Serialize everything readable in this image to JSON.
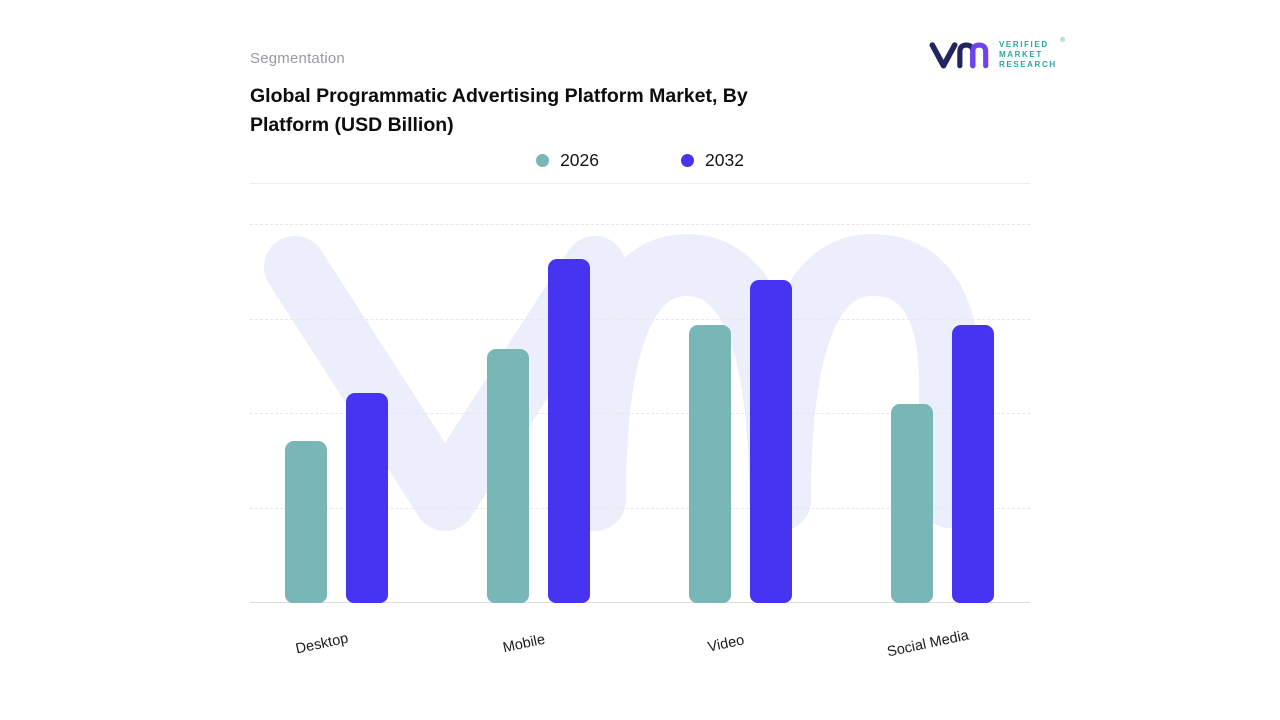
{
  "header": {
    "eyebrow": "Segmentation",
    "title_line1": "Global Programmatic Advertising Platform Market, By",
    "title_line2": "Platform (USD Billion)"
  },
  "logo": {
    "line1": "VERIFIED",
    "line2": "MARKET",
    "line3": "RESEARCH",
    "registered": "®",
    "text_color": "#2aa69f",
    "mark_navy": "#23265e",
    "mark_purple": "#6f42f0"
  },
  "legend": [
    {
      "label": "2026",
      "color": "#78b7b6"
    },
    {
      "label": "2032",
      "color": "#4634f0"
    }
  ],
  "chart_data": {
    "type": "bar",
    "title": "Global Programmatic Advertising Platform Market, By Platform (USD Billion)",
    "categories": [
      "Desktop",
      "Mobile",
      "Video",
      "Social Media"
    ],
    "series": [
      {
        "name": "2026",
        "color": "#78b7b6",
        "values": [
          47,
          74,
          81,
          58
        ]
      },
      {
        "name": "2032",
        "color": "#4634f0",
        "values": [
          61,
          100,
          94,
          81
        ]
      }
    ],
    "xlabel": "",
    "ylabel": "",
    "units": "USD Billion",
    "ylim": [
      0,
      110
    ],
    "yticks_visible": false,
    "grid": "horizontal-dashed",
    "legend_position": "top-center",
    "note": "no numeric axis labels shown; values estimated from relative bar heights"
  }
}
